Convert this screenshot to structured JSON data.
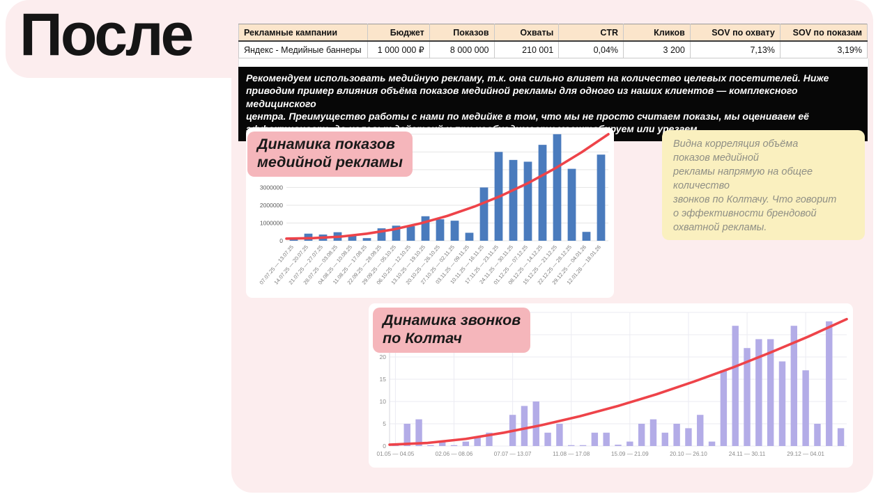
{
  "page": {
    "title": "После"
  },
  "colors": {
    "panel_pink": "#fcedee",
    "table_header_bg": "#fbe5cb",
    "recommendation_bg": "#070707",
    "note_bg": "#faf0bf",
    "note_text": "#8f8f85",
    "chart_label_bg": "#f5b6bb"
  },
  "table": {
    "columns": [
      "Рекламные кампании",
      "Бюджет",
      "Показов",
      "Охваты",
      "CTR",
      "Кликов",
      "SOV по охвату",
      "SOV по показам"
    ],
    "rows": [
      [
        "Яндекс - Медийные баннеры",
        "1 000 000 ₽",
        "8 000 000",
        "210 001",
        "0,04%",
        "3 200",
        "7,13%",
        "3,19%"
      ]
    ]
  },
  "recommendation": {
    "text": "Рекомендуем использовать медийную рекламу, т.к. она сильно влияет на количество целевых посетителей. Ниже\nприводим пример влияния объёма показов медийной рекламы для одного из наших клиентов — комплексного медицинского\nцентра. Преимущество работы с нами по медийке в том, что мы не просто считаем показы, мы оцениваем её\nэффективность до целевых действий и при необходимости масштабируем или урезаем."
  },
  "note": {
    "text": "Видна корреляция объёма\nпоказов медийной\nрекламы напрямую на общее\nколичество\nзвонков по Колтачу. Что говорит\nо эффективности брендовой\nохватной рекламы."
  },
  "chart_data": [
    {
      "type": "bar",
      "title": "Динамика показов медийной рекламы",
      "title_lines": [
        "Динамика показов",
        "медийной рекламы"
      ],
      "xlabel": "",
      "ylabel": "",
      "categories": [
        "07.07.25 — 13.07.25",
        "14.07.25 — 20.07.25",
        "21.07.25 — 27.07.25",
        "28.07.25 — 03.08.25",
        "04.08.25 — 10.08.25",
        "11.08.25 — 17.08.25",
        "22.09.25 — 28.09.25",
        "29.09.25 — 05.10.25",
        "06.10.25 — 12.10.25",
        "13.10.25 — 19.10.25",
        "20.10.25 — 26.10.25",
        "27.10.25 — 02.11.25",
        "03.11.25 — 09.11.25",
        "10.11.25 — 16.11.25",
        "17.11.25 — 23.11.25",
        "24.11.25 — 30.11.25",
        "01.12.25 — 07.12.25",
        "08.12.25 — 14.12.25",
        "15.12.25 — 21.12.25",
        "22.12.25 — 28.12.25",
        "29.12.25 — 04.01.26",
        "12.01.26 — 18.01.26"
      ],
      "values": [
        150000,
        400000,
        350000,
        480000,
        280000,
        150000,
        700000,
        850000,
        820000,
        1380000,
        1210000,
        1130000,
        450000,
        3000000,
        5000000,
        4550000,
        4450000,
        5400000,
        6000000,
        4050000,
        500000,
        4850000
      ],
      "trend": [
        120000,
        150000,
        230000,
        400000,
        640000,
        980000,
        1400000,
        1920000,
        2530000,
        3240000,
        4060000,
        4980000,
        6000000
      ],
      "ylim": [
        0,
        6150000
      ],
      "yticks": [
        0,
        1000000,
        2000000,
        3000000,
        4000000
      ],
      "grid_max": 6000000,
      "grid_step": 1000000,
      "bar_color": "#4a7bbd",
      "trend_color": "#ee4349",
      "grid_color": "#e4e4e4",
      "axis_color": "#595959",
      "legend": "none",
      "grid": "horizontal"
    },
    {
      "type": "bar",
      "title": "Динамика звонков по Колтач",
      "title_lines": [
        "Динамика звонков",
        "по Колтач"
      ],
      "xlabel": "",
      "ylabel": "",
      "values": [
        0.2,
        5,
        6,
        0.2,
        1,
        0.2,
        1,
        2,
        3,
        0,
        7,
        9,
        10,
        3,
        5,
        0.2,
        0.2,
        3,
        3,
        0.3,
        1,
        5,
        6,
        3,
        5,
        4,
        7,
        1,
        17,
        27,
        22,
        24,
        24,
        19,
        27,
        17,
        5,
        28,
        4
      ],
      "sparse_labels": [
        {
          "index": 0,
          "text": "01.05 — 04.05"
        },
        {
          "index": 5,
          "text": "02.06 — 08.06"
        },
        {
          "index": 10,
          "text": "07.07 — 13.07"
        },
        {
          "index": 15,
          "text": "11.08 — 17.08"
        },
        {
          "index": 20,
          "text": "15.09 — 21.09"
        },
        {
          "index": 25,
          "text": "20.10 — 26.10"
        },
        {
          "index": 30,
          "text": "24.11 — 30.11"
        },
        {
          "index": 35,
          "text": "29.12 — 04.01"
        }
      ],
      "trend": [
        0.3,
        0.7,
        1.6,
        3,
        4.7,
        6.7,
        9,
        11.6,
        14.5,
        17.6,
        21,
        24.6,
        28.5
      ],
      "ylim": [
        0,
        30
      ],
      "yticks": [
        0,
        5,
        10,
        15,
        20
      ],
      "grid_max": 30,
      "grid_step": 5,
      "bar_color": "#b3ace7",
      "trend_color": "#ee4349",
      "grid_color": "#ebebf2",
      "axis_color": "#8a8a8a",
      "legend": "none",
      "grid": "both"
    }
  ]
}
